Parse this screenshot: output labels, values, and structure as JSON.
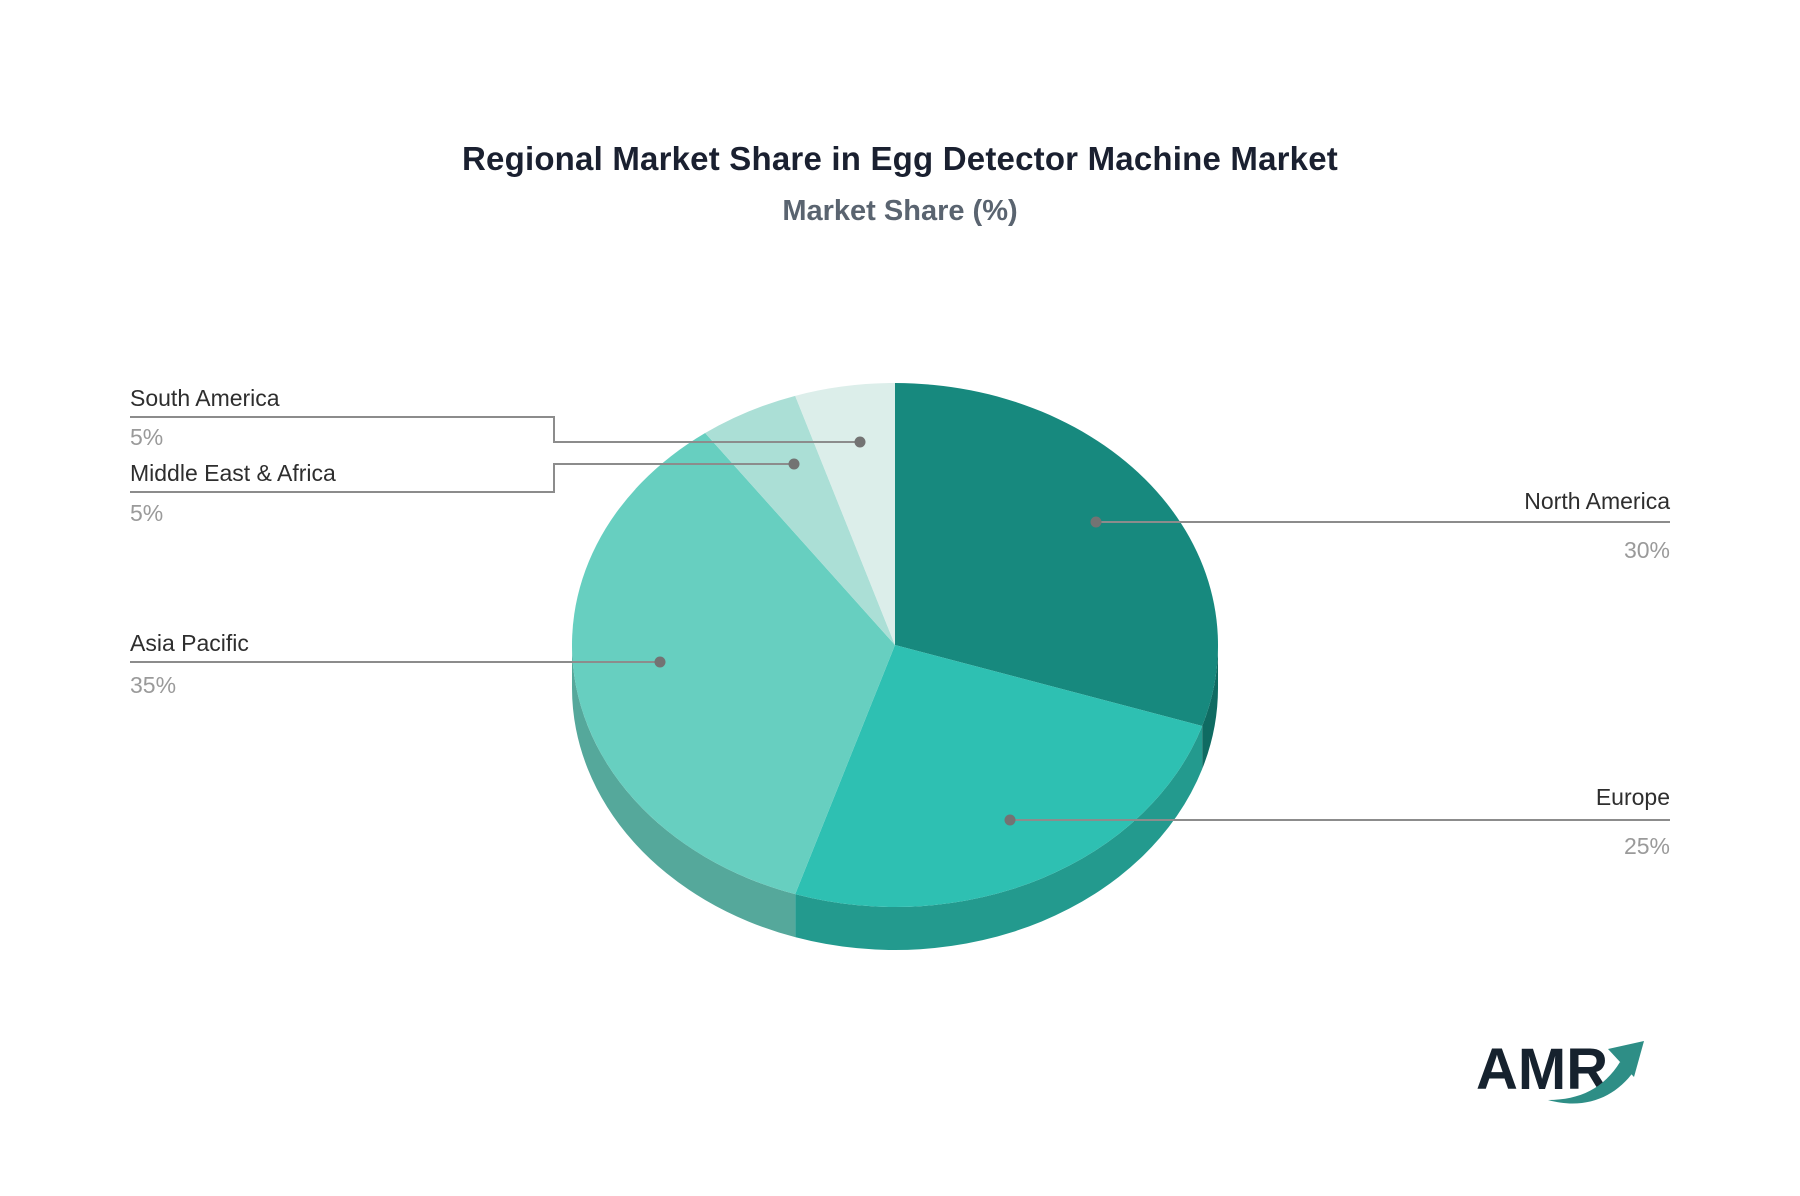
{
  "header": {
    "title": "Regional Market Share in Egg Detector Machine Market",
    "subtitle": "Market Share (%)"
  },
  "chart_data": {
    "type": "pie",
    "title": "Regional Market Share in Egg Detector Machine Market",
    "subtitle": "Market Share (%)",
    "unit": "%",
    "direction": "clockwise",
    "start_angle_deg": 0,
    "effect": "3d-depth",
    "legend_position": "none",
    "labels_layout": "callout-lines",
    "slices": [
      {
        "label": "North America",
        "value": 30,
        "pct_label": "30%",
        "color": "#17897E",
        "side_color": "#0F6B62"
      },
      {
        "label": "Europe",
        "value": 25,
        "pct_label": "25%",
        "color": "#2EC0B2",
        "side_color": "#239A8E"
      },
      {
        "label": "Asia Pacific",
        "value": 35,
        "pct_label": "35%",
        "color": "#67CFC0",
        "side_color": "#55A89B"
      },
      {
        "label": "Middle East & Africa",
        "value": 5,
        "pct_label": "5%",
        "color": "#ABDFD6",
        "side_color": "#8CB8B0"
      },
      {
        "label": "South America",
        "value": 5,
        "pct_label": "5%",
        "color": "#DCEEEA",
        "side_color": "#B9CFCA"
      }
    ]
  },
  "colors": {
    "leader_line": "#8C8C8C",
    "dot": "#737373",
    "label_text": "#2E2E2E",
    "pct_text": "#9A9A9A",
    "title_text": "#1A2030",
    "subtitle_text": "#5A6470",
    "logo_text": "#16222E",
    "logo_arrow": "#2E8E86"
  },
  "logo": {
    "text": "AMR"
  }
}
